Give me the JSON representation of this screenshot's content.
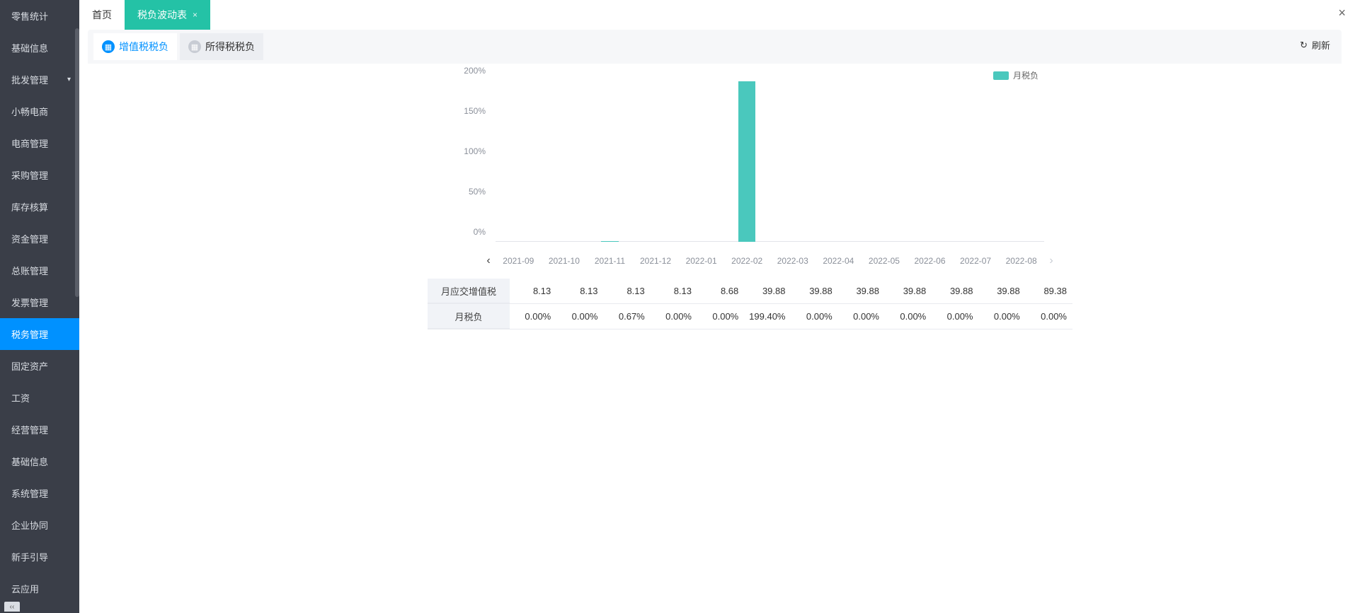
{
  "sidebar": {
    "items": [
      {
        "label": "零售统计",
        "active": false,
        "expandable": false
      },
      {
        "label": "基础信息",
        "active": false,
        "expandable": false
      },
      {
        "label": "批发管理",
        "active": false,
        "expandable": true
      },
      {
        "label": "小畅电商",
        "active": false,
        "expandable": false
      },
      {
        "label": "电商管理",
        "active": false,
        "expandable": false
      },
      {
        "label": "采购管理",
        "active": false,
        "expandable": false
      },
      {
        "label": "库存核算",
        "active": false,
        "expandable": false
      },
      {
        "label": "资金管理",
        "active": false,
        "expandable": false
      },
      {
        "label": "总账管理",
        "active": false,
        "expandable": false
      },
      {
        "label": "发票管理",
        "active": false,
        "expandable": false
      },
      {
        "label": "税务管理",
        "active": true,
        "expandable": false
      },
      {
        "label": "固定资产",
        "active": false,
        "expandable": false
      },
      {
        "label": "工资",
        "active": false,
        "expandable": false
      },
      {
        "label": "经营管理",
        "active": false,
        "expandable": false
      },
      {
        "label": "基础信息",
        "active": false,
        "expandable": false
      },
      {
        "label": "系统管理",
        "active": false,
        "expandable": false
      },
      {
        "label": "企业协同",
        "active": false,
        "expandable": false
      },
      {
        "label": "新手引导",
        "active": false,
        "expandable": false
      },
      {
        "label": "云应用",
        "active": false,
        "expandable": false
      }
    ]
  },
  "top_tabs": {
    "items": [
      {
        "label": "首页",
        "active": false,
        "closable": false
      },
      {
        "label": "税负波动表",
        "active": true,
        "closable": true
      }
    ]
  },
  "sub_tabs": {
    "items": [
      {
        "label": "增值税税负",
        "active": true
      },
      {
        "label": "所得税税负",
        "active": false
      }
    ],
    "refresh_label": "刷新"
  },
  "chart": {
    "type": "bar",
    "legend_label": "月税负",
    "legend_color": "#4ac8bd",
    "bar_color": "#4ac8bd",
    "background_color": "#ffffff",
    "y_axis": {
      "min": 0,
      "max": 200,
      "step": 50,
      "unit": "%",
      "font_color": "#8a8f99",
      "font_size": 12
    },
    "x_axis": {
      "font_color": "#8a8f99",
      "font_size": 12
    },
    "categories": [
      "2021-09",
      "2021-10",
      "2021-11",
      "2021-12",
      "2022-01",
      "2022-02",
      "2022-03",
      "2022-04",
      "2022-05",
      "2022-06",
      "2022-07",
      "2022-08"
    ],
    "values": [
      0.0,
      0.0,
      0.67,
      0.0,
      0.0,
      199.4,
      0.0,
      0.0,
      0.0,
      0.0,
      0.0,
      0.0
    ],
    "bar_width_ratio": 0.38,
    "axis_line_color": "#e2e4ea"
  },
  "table": {
    "row1_label": "月应交增值税",
    "row1_values": [
      "8.13",
      "8.13",
      "8.13",
      "8.13",
      "8.68",
      "39.88",
      "39.88",
      "39.88",
      "39.88",
      "39.88",
      "39.88",
      "89.38"
    ],
    "row2_label": "月税负",
    "row2_values": [
      "0.00%",
      "0.00%",
      "0.67%",
      "0.00%",
      "0.00%",
      "199.40%",
      "0.00%",
      "0.00%",
      "0.00%",
      "0.00%",
      "0.00%",
      "0.00%"
    ],
    "head_bg": "#f1f3f7",
    "border_color": "#e8eaef",
    "font_size": 13
  },
  "colors": {
    "sidebar_bg": "#3a3e48",
    "sidebar_active_bg": "#0091ff",
    "top_tab_active_bg": "#24c2a6",
    "sub_bar_bg": "#f6f7f9",
    "sub_tab_bg": "#eceef2",
    "sub_tab_active_text": "#0091ff"
  }
}
